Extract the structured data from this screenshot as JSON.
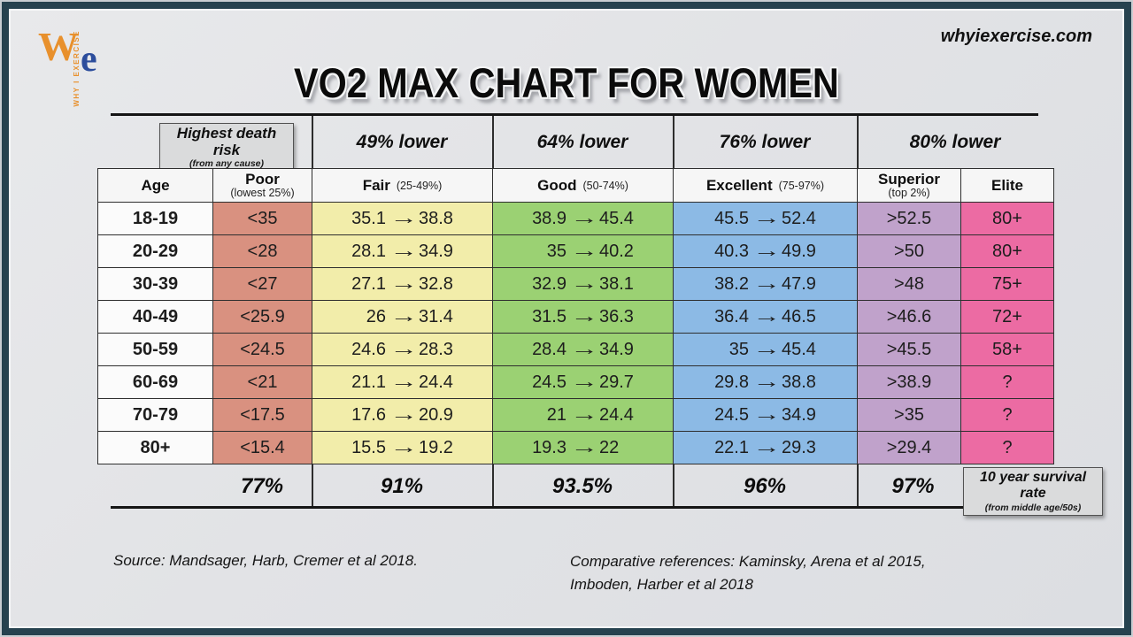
{
  "site": {
    "url": "whyiexercise.com",
    "logo_w": "W",
    "logo_e": "e",
    "logo_vertical": "WHY I EXERCISE"
  },
  "title": "VO2 MAX CHART FOR WOMEN",
  "arrow_glyph": "→",
  "risk_header": {
    "box_title": "Highest death risk",
    "box_sub": "(from any cause)",
    "groups": [
      "49% lower",
      "64% lower",
      "76% lower",
      "80% lower"
    ]
  },
  "columns": {
    "age": "Age",
    "poor": "Poor",
    "poor_sub": "(lowest 25%)",
    "fair": "Fair",
    "fair_sub": "(25-49%)",
    "good": "Good",
    "good_sub": "(50-74%)",
    "excellent": "Excellent",
    "excellent_sub": "(75-97%)",
    "superior": "Superior",
    "superior_sub": "(top 2%)",
    "elite": "Elite"
  },
  "colors": {
    "poor": "#d99180",
    "fair": "#f2edaa",
    "good": "#9bd173",
    "excellent": "#8cbae5",
    "superior": "#c0a2cb",
    "elite": "#ec6ba3",
    "frame": "#26424f",
    "rule": "#151515",
    "logo_orange": "#e8902c",
    "logo_blue": "#2c4d9c"
  },
  "chart_data": {
    "type": "table",
    "title": "VO2 MAX CHART FOR WOMEN",
    "death_risk_reduction": {
      "Poor": "Highest death risk (from any cause)",
      "Fair": "49% lower",
      "Good": "64% lower",
      "Excellent": "76% lower",
      "Superior_Elite": "80% lower"
    },
    "columns": [
      "Age",
      "Poor (lowest 25%)",
      "Fair (25-49%)",
      "Good (50-74%)",
      "Excellent (75-97%)",
      "Superior (top 2%)",
      "Elite"
    ],
    "rows": [
      {
        "age": "18-19",
        "poor": "<35",
        "fair": [
          "35.1",
          "38.8"
        ],
        "good": [
          "38.9",
          "45.4"
        ],
        "excellent": [
          "45.5",
          "52.4"
        ],
        "superior": ">52.5",
        "elite": "80+"
      },
      {
        "age": "20-29",
        "poor": "<28",
        "fair": [
          "28.1",
          "34.9"
        ],
        "good": [
          "35",
          "40.2"
        ],
        "excellent": [
          "40.3",
          "49.9"
        ],
        "superior": ">50",
        "elite": "80+"
      },
      {
        "age": "30-39",
        "poor": "<27",
        "fair": [
          "27.1",
          "32.8"
        ],
        "good": [
          "32.9",
          "38.1"
        ],
        "excellent": [
          "38.2",
          "47.9"
        ],
        "superior": ">48",
        "elite": "75+"
      },
      {
        "age": "40-49",
        "poor": "<25.9",
        "fair": [
          "26",
          "31.4"
        ],
        "good": [
          "31.5",
          "36.3"
        ],
        "excellent": [
          "36.4",
          "46.5"
        ],
        "superior": ">46.6",
        "elite": "72+"
      },
      {
        "age": "50-59",
        "poor": "<24.5",
        "fair": [
          "24.6",
          "28.3"
        ],
        "good": [
          "28.4",
          "34.9"
        ],
        "excellent": [
          "35",
          "45.4"
        ],
        "superior": ">45.5",
        "elite": "58+"
      },
      {
        "age": "60-69",
        "poor": "<21",
        "fair": [
          "21.1",
          "24.4"
        ],
        "good": [
          "24.5",
          "29.7"
        ],
        "excellent": [
          "29.8",
          "38.8"
        ],
        "superior": ">38.9",
        "elite": "?"
      },
      {
        "age": "70-79",
        "poor": "<17.5",
        "fair": [
          "17.6",
          "20.9"
        ],
        "good": [
          "21",
          "24.4"
        ],
        "excellent": [
          "24.5",
          "34.9"
        ],
        "superior": ">35",
        "elite": "?"
      },
      {
        "age": "80+",
        "poor": "<15.4",
        "fair": [
          "15.5",
          "19.2"
        ],
        "good": [
          "19.3",
          "22"
        ],
        "excellent": [
          "22.1",
          "29.3"
        ],
        "superior": ">29.4",
        "elite": "?"
      }
    ],
    "survival": {
      "values": [
        "77%",
        "91%",
        "93.5%",
        "96%",
        "97%"
      ],
      "label": "10 year survival rate",
      "label_sub": "(from middle age/50s)"
    }
  },
  "footer": {
    "source": "Source:  Mandsager, Harb, Cremer et al 2018.",
    "comparative_line1": "Comparative references:  Kaminsky, Arena et al 2015,",
    "comparative_line2": "Imboden, Harber et al 2018"
  }
}
